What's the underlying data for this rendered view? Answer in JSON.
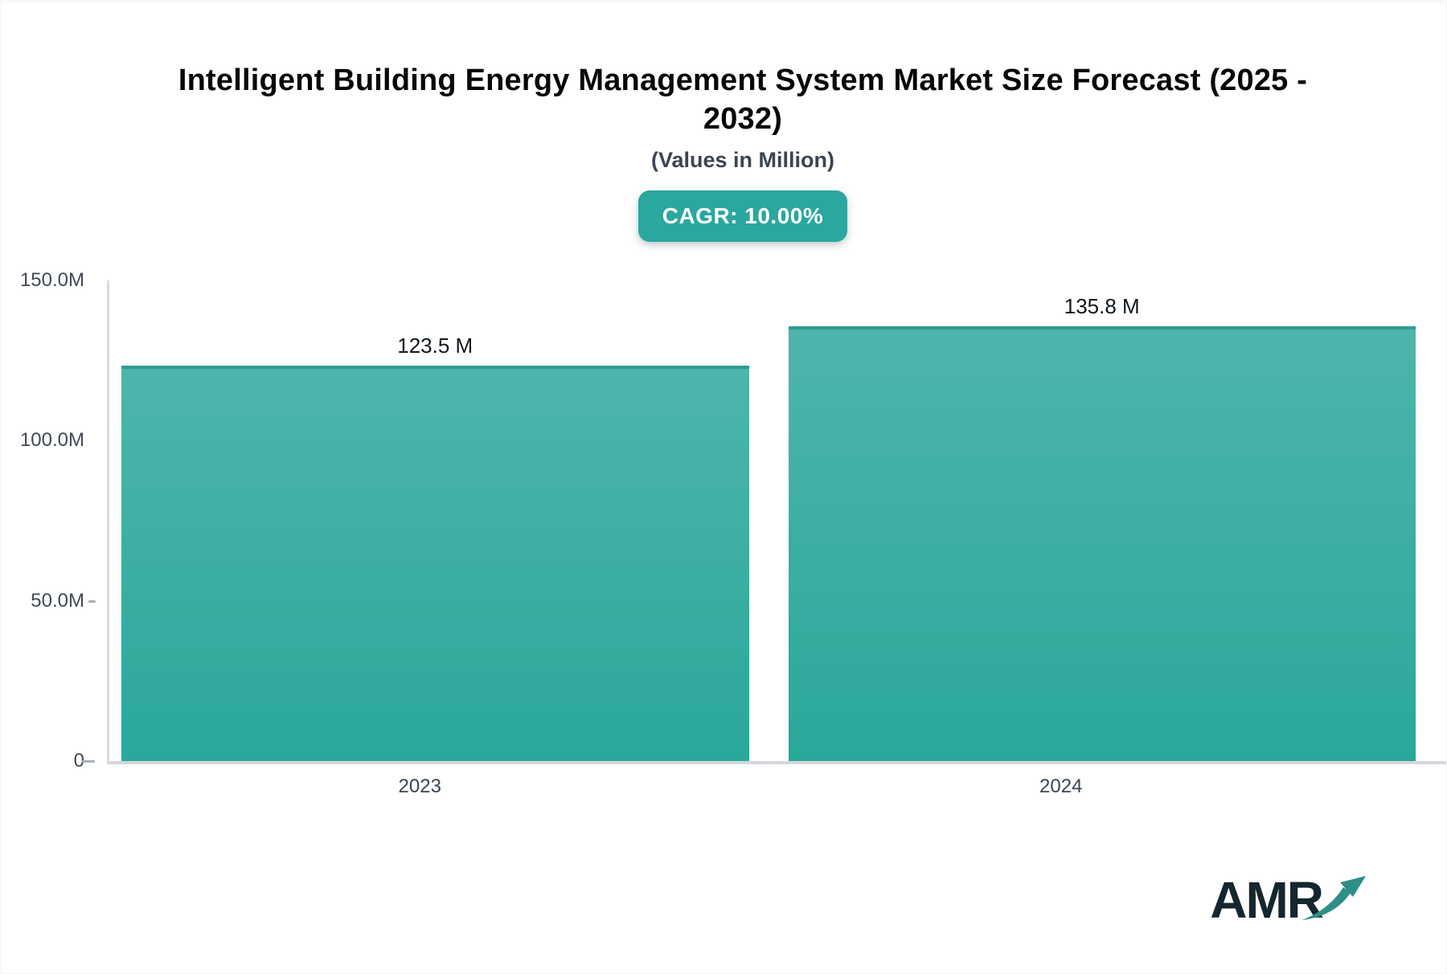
{
  "header": {
    "title_line1": "Intelligent Building Energy Management System Market Size Forecast (2025 -",
    "title_line2": "2032)",
    "subtitle": "(Values in Million)",
    "cagr_label": "CAGR: 10.00%"
  },
  "chart_data": {
    "type": "bar",
    "title": "Intelligent Building Energy Management System Market Size Forecast (2025 - 2032)",
    "subtitle": "(Values in Million)",
    "cagr": "10.00%",
    "categories": [
      "2023",
      "2024"
    ],
    "values": [
      123.5,
      135.8
    ],
    "value_labels": [
      "123.5 M",
      "135.8 M"
    ],
    "unit": "Million",
    "ylim": [
      0,
      150
    ],
    "yticks": [
      {
        "value": 150,
        "label": "150.0M",
        "dash": "none"
      },
      {
        "value": 100,
        "label": "100.0M",
        "dash": "none"
      },
      {
        "value": 50,
        "label": "50.0M",
        "dash": "short"
      },
      {
        "value": 0,
        "label": "0",
        "dash": "long"
      }
    ],
    "grid": false,
    "legend": false,
    "bar_gradient_top": "#4eb5aa",
    "bar_gradient_bottom": "#29a89a",
    "bar_top_border": "#2c9c8e"
  },
  "footer": {
    "logo_text": "AMR",
    "logo_arrow_icon": "growth-arrow-icon",
    "logo_text_color": "#15262e",
    "logo_arrow_color": "#2e8f87"
  },
  "colors": {
    "badge_bg": "#2aa79e",
    "badge_text": "#ffffff",
    "axis_line": "#d8dade",
    "baseline": "#d4d6db",
    "tick_text": "#3f4956",
    "category_text": "#3a4554",
    "value_label_text": "#10161d",
    "title_text": "#070707",
    "subtitle_text": "#3d4451"
  }
}
